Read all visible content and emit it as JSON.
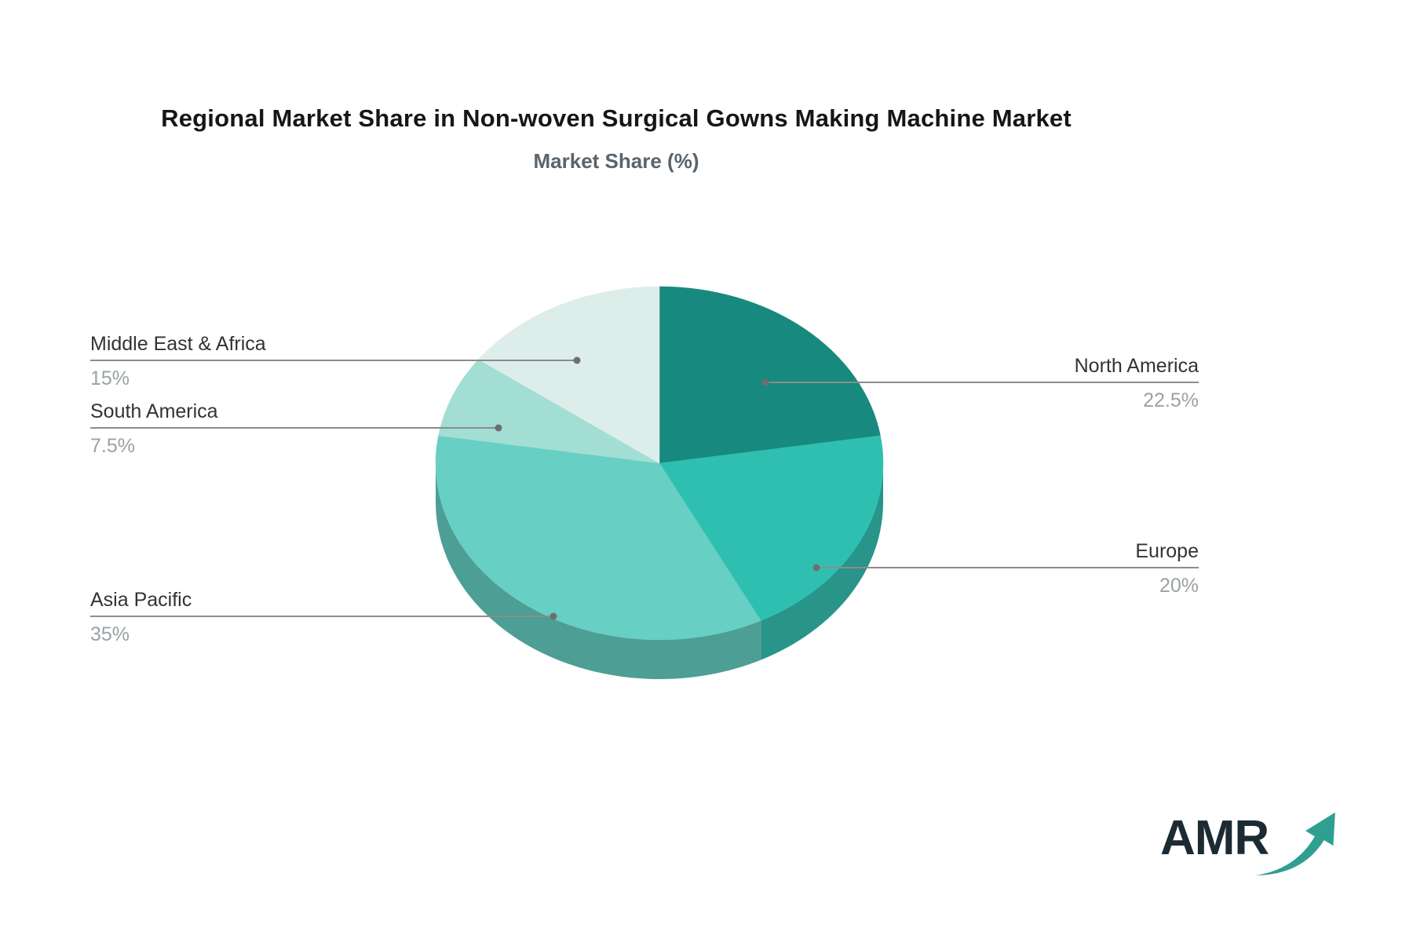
{
  "page": {
    "background": "#ffffff"
  },
  "header": {
    "title": "Regional Market Share in Non-woven Surgical Gowns Making Machine Market",
    "subtitle": "Market Share (%)"
  },
  "logo": {
    "text": "AMR",
    "text_color": "#1c2b33",
    "arrow_color": "#2f9f90"
  },
  "style": {
    "leader_line_color": "#8c8c8c",
    "leader_dot_color": "#6e6e6e",
    "label_color": "#333333",
    "value_color": "#9ba1a5",
    "title_color": "#161616",
    "subtitle_color": "#5a646c"
  },
  "chart_data": {
    "type": "pie",
    "title": "Regional Market Share in Non-woven Surgical Gowns Making Machine Market",
    "subtitle": "Market Share (%)",
    "unit": "%",
    "start_angle": "top",
    "direction": "clockwise",
    "effect_3d_depth": true,
    "legend_position": "callout-lines",
    "slices": [
      {
        "label": "North America",
        "value": 22.5,
        "display": "22.5%",
        "color": "#17897e",
        "depth_color": "#1f8074"
      },
      {
        "label": "Europe",
        "value": 20,
        "display": "20%",
        "color": "#2fbfb1",
        "depth_color": "#28948a"
      },
      {
        "label": "Asia Pacific",
        "value": 35,
        "display": "35%",
        "color": "#67cfc3",
        "depth_color": "#4d9e94"
      },
      {
        "label": "South America",
        "value": 7.5,
        "display": "7.5%",
        "color": "#a3ded4",
        "depth_color": "#7fb5ac"
      },
      {
        "label": "Middle East & Africa",
        "value": 15,
        "display": "15%",
        "color": "#ddeeea",
        "depth_color": "#b4c9c4"
      }
    ]
  }
}
